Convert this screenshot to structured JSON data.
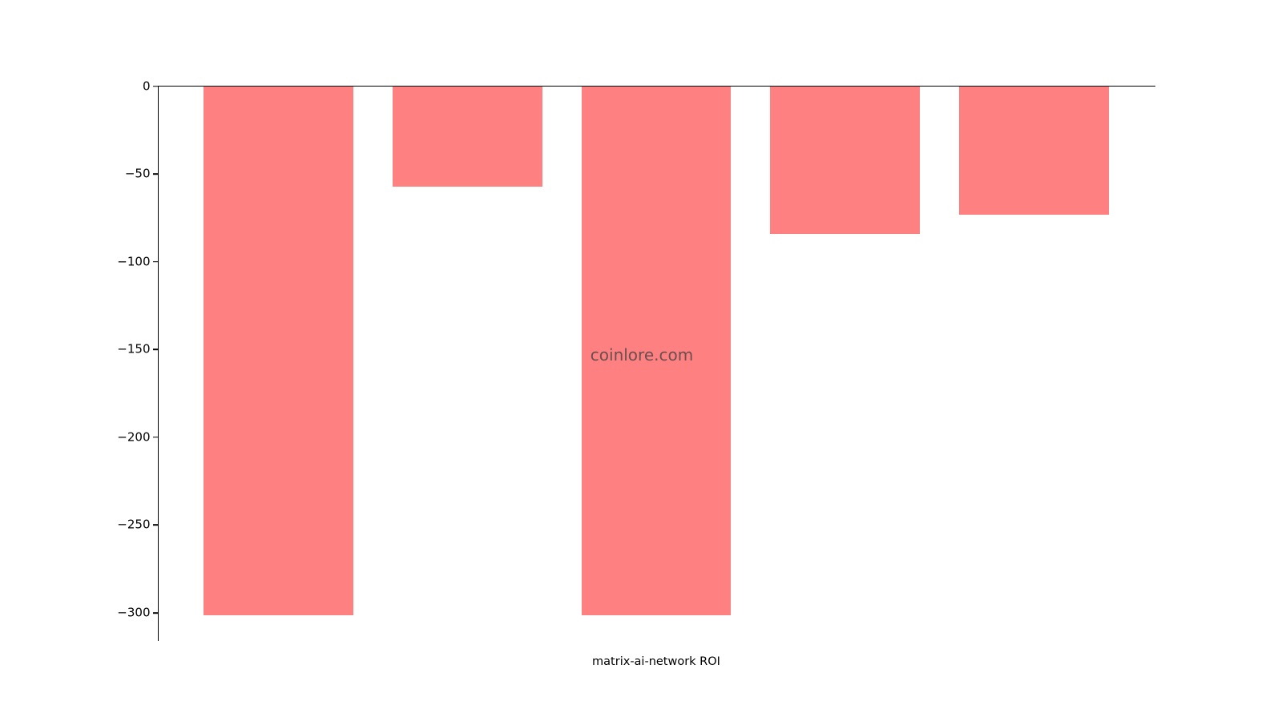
{
  "chart_data": {
    "type": "bar",
    "values": [
      -301,
      -57,
      -301,
      -84,
      -73
    ],
    "n_bars": 5,
    "title": "",
    "xlabel": "matrix-ai-network ROI",
    "ylabel": "",
    "ylim": [
      -316,
      0
    ],
    "yticks": [
      0,
      -50,
      -100,
      -150,
      -200,
      -250,
      -300
    ],
    "ytick_labels": [
      "0",
      "−50",
      "−100",
      "−150",
      "−200",
      "−250",
      "−300"
    ],
    "xtick_labels": [],
    "grid": false,
    "legend": false,
    "bar_color": "#ff8080",
    "axis_color": "#000000",
    "watermark": "coinlore.com",
    "watermark_color": "#444444"
  }
}
